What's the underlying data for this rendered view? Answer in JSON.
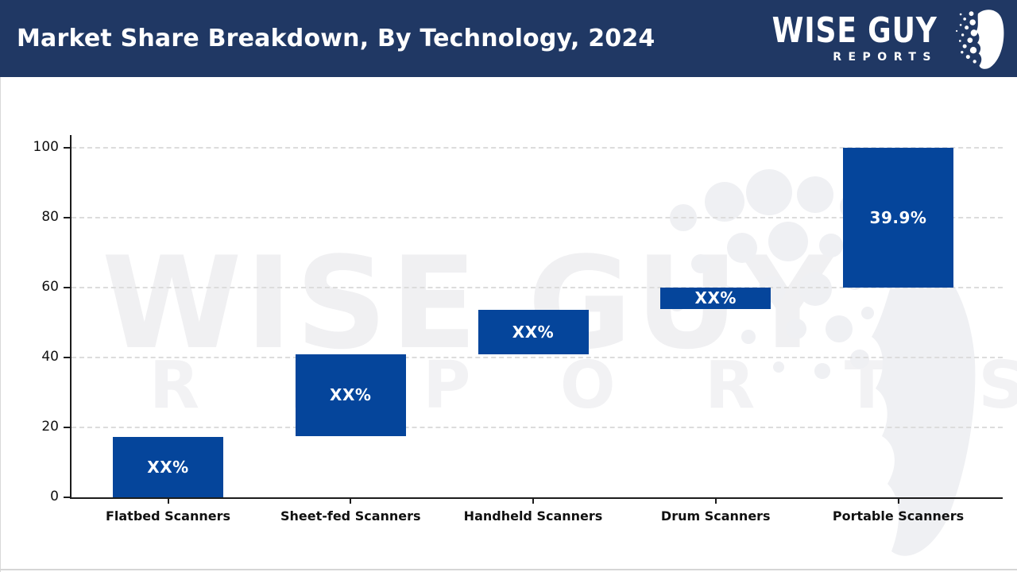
{
  "header": {
    "title": "Market Share Breakdown, By Technology, 2024",
    "logo": {
      "line1": "WISE GUY",
      "line2": "REPORTS"
    }
  },
  "watermark": {
    "line1": "WISE GUY",
    "line2": "REPORTS",
    "line2_spaced": "R E P O R T S"
  },
  "colors": {
    "header_bg": "#203864",
    "bar": "#05459b",
    "bar_label": "#ffffff",
    "axis": "#1c1c1c",
    "grid": "#dcdcdc",
    "watermark": "#f0f0f2",
    "edge_border": "#d6d6d6"
  },
  "chart_data": {
    "type": "bar",
    "subtype": "waterfall",
    "title": "Market Share Breakdown, By Technology, 2024",
    "categories": [
      "Flatbed Scanners",
      "Sheet-fed Scanners",
      "Handheld Scanners",
      "Drum Scanners",
      "Portable Scanners"
    ],
    "bars": [
      {
        "category": "Flatbed Scanners",
        "start": 0,
        "end": 17.2,
        "label": "XX%"
      },
      {
        "category": "Sheet-fed Scanners",
        "start": 17.5,
        "end": 41.0,
        "label": "XX%"
      },
      {
        "category": "Handheld Scanners",
        "start": 41.0,
        "end": 53.7,
        "label": "XX%"
      },
      {
        "category": "Drum Scanners",
        "start": 53.9,
        "end": 60.1,
        "label": "XX%"
      },
      {
        "category": "Portable Scanners",
        "start": 60.1,
        "end": 100.0,
        "label": "39.9%"
      }
    ],
    "yticks": [
      0,
      20,
      40,
      60,
      80,
      100
    ],
    "ylim": [
      0,
      104
    ],
    "grid": "dashed-horizontal",
    "legend": null,
    "xlabel": "",
    "ylabel": ""
  }
}
